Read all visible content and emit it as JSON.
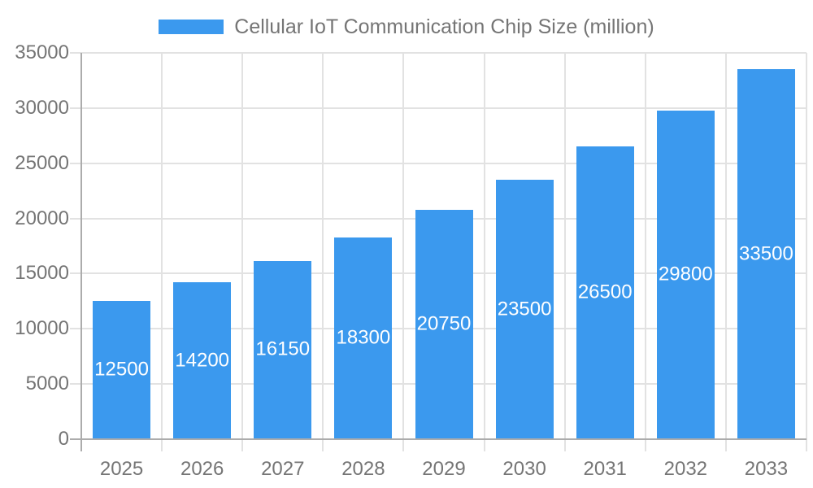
{
  "chart_data": {
    "type": "bar",
    "title": "Cellular IoT Communication Chip Size (million)",
    "categories": [
      "2025",
      "2026",
      "2027",
      "2028",
      "2029",
      "2030",
      "2031",
      "2032",
      "2033"
    ],
    "values": [
      12500,
      14200,
      16150,
      18300,
      20750,
      23500,
      26500,
      29800,
      33500
    ],
    "xlabel": "",
    "ylabel": "",
    "ylim": [
      0,
      35000
    ],
    "y_ticks": [
      0,
      5000,
      10000,
      15000,
      20000,
      25000,
      30000,
      35000
    ],
    "grid": true,
    "legend_position": "top",
    "bar_labels_inside": true
  },
  "colors": {
    "bar": "#3B99EE",
    "bar_label": "#FFFFFF",
    "axis_text": "#757575",
    "grid_line": "#E2E2E2",
    "axis_line": "#ACACAC",
    "background": "#FFFFFF"
  }
}
